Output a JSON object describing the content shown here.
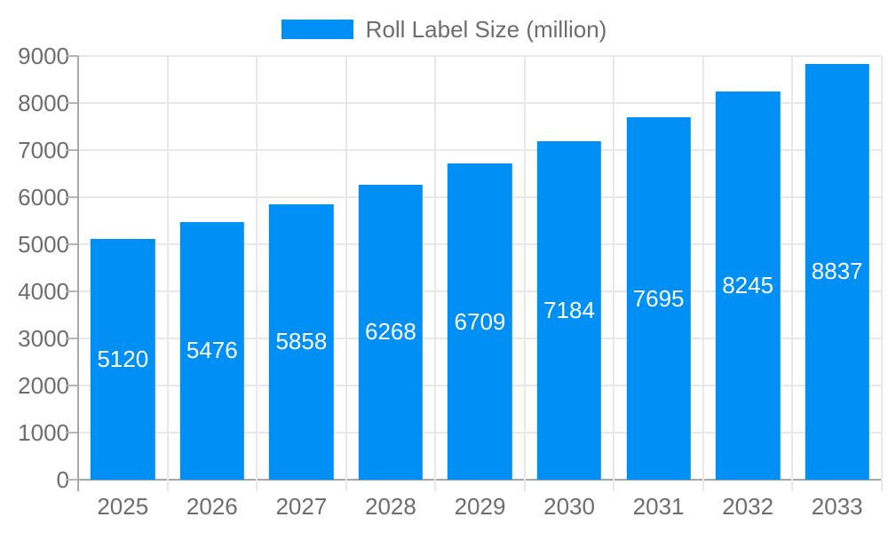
{
  "legend": {
    "label": "Roll Label Size (million)"
  },
  "colors": {
    "bar": "#0090F5",
    "bar_label": "#ffffff",
    "grid": "#e8e8e8",
    "axis": "#a6a6a6",
    "tick": "#b5b5b5",
    "text": "#6d6d6d",
    "background": "#ffffff"
  },
  "chart_data": {
    "type": "bar",
    "title": "Roll Label Size (million)",
    "categories": [
      "2025",
      "2026",
      "2027",
      "2028",
      "2029",
      "2030",
      "2031",
      "2032",
      "2033"
    ],
    "series": [
      {
        "name": "Roll Label Size (million)",
        "values": [
          5120,
          5476,
          5858,
          6268,
          6709,
          7184,
          7695,
          8245,
          8837
        ]
      }
    ],
    "xlabel": "",
    "ylabel": "",
    "ylim": [
      0,
      9000
    ],
    "yticks": [
      0,
      1000,
      2000,
      3000,
      4000,
      5000,
      6000,
      7000,
      8000,
      9000
    ],
    "grid": true,
    "legend_position": "top",
    "bar_value_labels": "inside-center"
  }
}
